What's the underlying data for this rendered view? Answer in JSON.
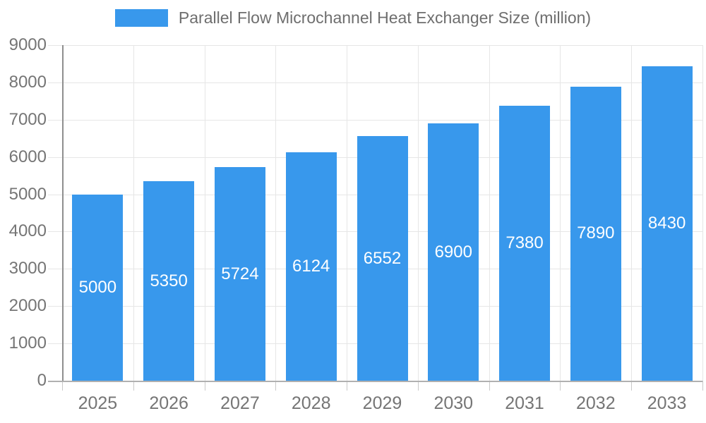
{
  "chart_data": {
    "type": "bar",
    "title": "Parallel Flow Microchannel Heat Exchanger Size (million)",
    "categories": [
      "2025",
      "2026",
      "2027",
      "2028",
      "2029",
      "2030",
      "2031",
      "2032",
      "2033"
    ],
    "values": [
      5000,
      5350,
      5724,
      6124,
      6552,
      6900,
      7380,
      7890,
      8430
    ],
    "xlabel": "",
    "ylabel": "",
    "ylim": [
      0,
      9000
    ],
    "ytick_step": 1000,
    "grid": true,
    "legend_position": "top-center",
    "bar_color": "#3898ec",
    "value_label_color": "#ffffff",
    "axis_text_color": "#757575",
    "gridline_color": "#e6e6e6"
  },
  "legend": {
    "label": "Parallel Flow Microchannel Heat Exchanger Size (million)",
    "swatch_color": "#3898ec"
  }
}
